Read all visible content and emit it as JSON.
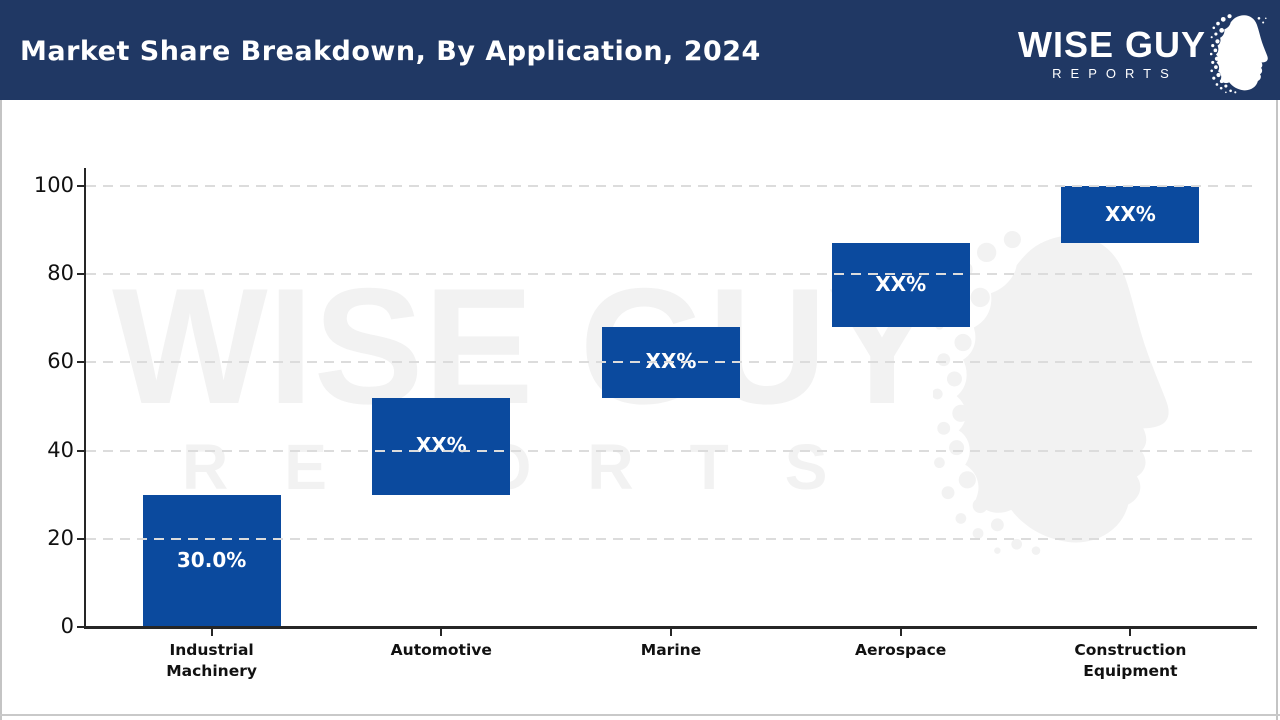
{
  "header": {
    "title": "Market Share Breakdown, By Application, 2024",
    "logo": {
      "line1": "WISE GUY",
      "line2": "REPORTS"
    }
  },
  "watermark": {
    "line1": "WISE GUY",
    "line2": "REPORTS"
  },
  "chart_data": {
    "type": "bar",
    "subtype": "floating-segment-waterfall",
    "title": "Market Share Breakdown, By Application, 2024",
    "categories": [
      "Industrial\nMachinery",
      "Automotive",
      "Marine",
      "Aerospace",
      "Construction\nEquipment"
    ],
    "series": [
      {
        "name": "Market share (%)",
        "segments": [
          {
            "category": "Industrial Machinery",
            "start": 0,
            "end": 30,
            "value": 30.0,
            "label": "30.0%"
          },
          {
            "category": "Automotive",
            "start": 30,
            "end": 52,
            "value": 22,
            "label": "XX%"
          },
          {
            "category": "Marine",
            "start": 52,
            "end": 68,
            "value": 16,
            "label": "XX%"
          },
          {
            "category": "Aerospace",
            "start": 68,
            "end": 87,
            "value": 19,
            "label": "XX%"
          },
          {
            "category": "Construction Equipment",
            "start": 87,
            "end": 100,
            "value": 13,
            "label": "XX%"
          }
        ]
      }
    ],
    "xlabel": "",
    "ylabel": "",
    "ylim": [
      0,
      100
    ],
    "yticks": [
      0,
      20,
      40,
      60,
      80,
      100
    ],
    "grid": {
      "horizontal": true,
      "style": "dashed",
      "color": "#dcdcdc"
    },
    "legend": "none",
    "colors": {
      "bar": "#0b4a9e",
      "bar_label": "#ffffff",
      "axis": "#262626",
      "tick_label": "#111111",
      "header_bg": "#203864",
      "header_text": "#ffffff",
      "watermark": "#f2f2f2"
    }
  }
}
